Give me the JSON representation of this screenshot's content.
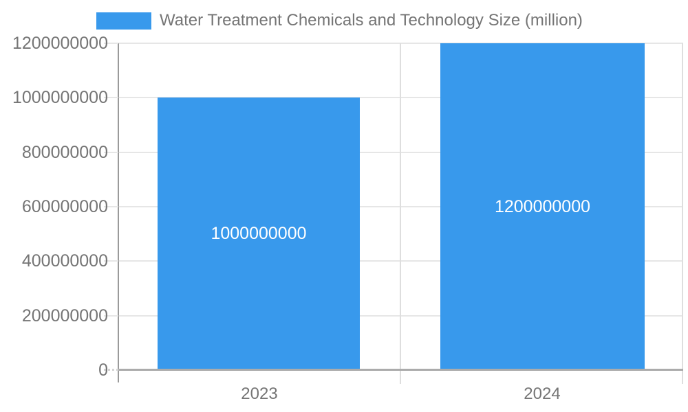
{
  "chart_data": {
    "type": "bar",
    "title": "Water Treatment Chemicals and Technology Size (million)",
    "legend": {
      "position": "top",
      "label": "Water Treatment Chemicals and Technology Size (million)",
      "swatch_color": "#3899ec"
    },
    "categories": [
      "2023",
      "2024"
    ],
    "values": [
      1000000000,
      1200000000
    ],
    "bar_labels": [
      "1000000000",
      "1200000000"
    ],
    "xlabel": "",
    "ylabel": "",
    "ylim": [
      0,
      1200000000
    ],
    "y_tick_step": 200000000,
    "y_ticks": [
      "1200000000",
      "1000000000",
      "800000000",
      "600000000",
      "400000000",
      "200000000",
      "0"
    ],
    "grid": true,
    "colors": {
      "bar": "#3899ec",
      "bar_label_text": "#ffffff",
      "gridline": "#e6e6e6",
      "axis_line": "#9a9a9a",
      "baseline": "#ababab",
      "axis_label_text": "#757575",
      "background": "#ffffff"
    }
  }
}
